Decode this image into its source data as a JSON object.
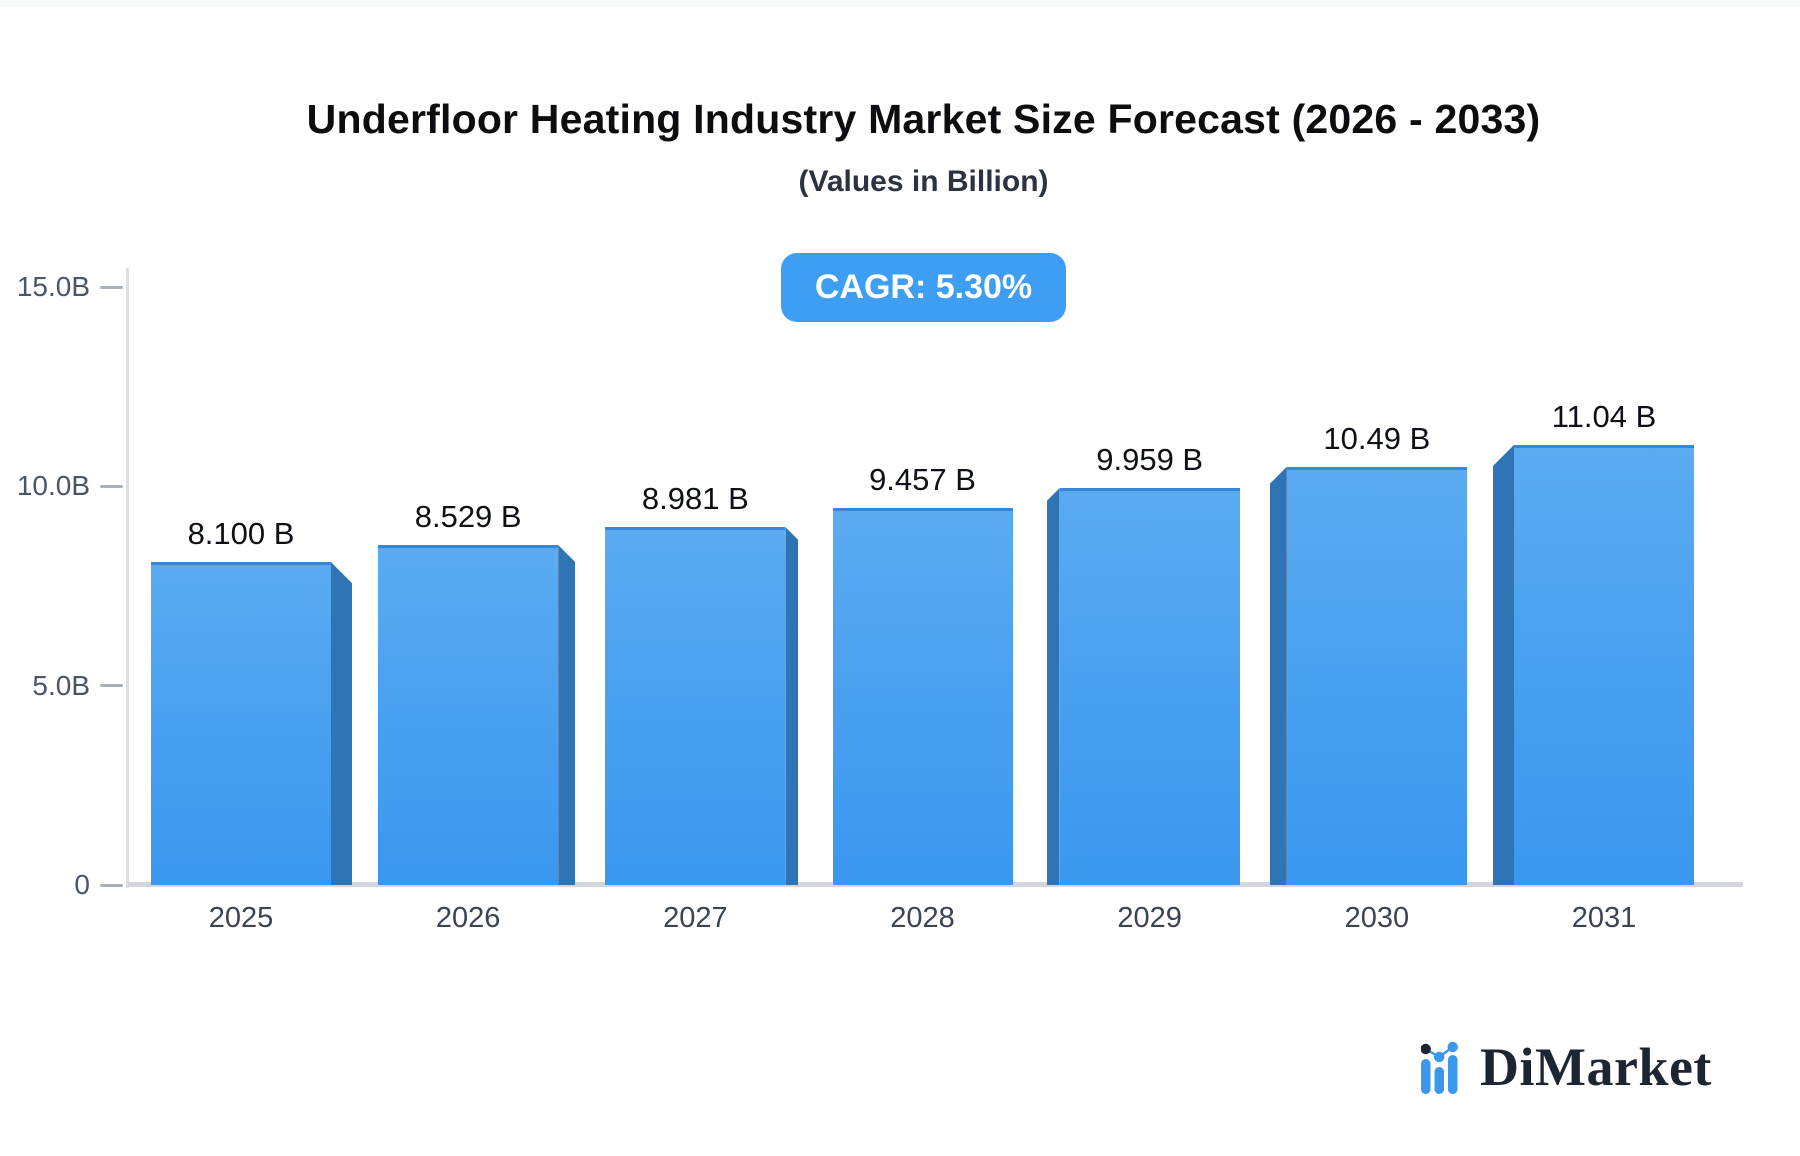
{
  "header": {
    "title": "Underfloor Heating Industry Market Size Forecast (2026 - 2033)",
    "subtitle": "(Values in Billion)",
    "cagr_badge": "CAGR: 5.30%"
  },
  "branding": {
    "logo_text": "DiMarket",
    "logo_icon": "dimarket-bars-icon"
  },
  "colors": {
    "bar_face_top": "#5babf1",
    "bar_face_bottom": "#3b97ef",
    "bar_top_edge": "#3a86d6",
    "bar_side": "#2f74b4",
    "badge_bg": "#3d9ef3",
    "badge_text": "#ffffff",
    "axis_line": "#d6d9df",
    "tick_dash": "#a9b0bb",
    "tick_label": "#4a5568",
    "category_label": "#3a4452",
    "value_label": "#0d1016",
    "title": "#0b0d11",
    "subtitle": "#2b3340",
    "logo_text_color": "#1c2532",
    "logo_icon_blue": "#3b96ee"
  },
  "chart_data": {
    "type": "bar",
    "title": "Underfloor Heating Industry Market Size Forecast (2026 - 2033)",
    "subtitle": "(Values in Billion)",
    "annotation": "CAGR: 5.30%",
    "unit": "Billion",
    "categories": [
      "2025",
      "2026",
      "2027",
      "2028",
      "2029",
      "2030",
      "2031"
    ],
    "values": [
      8.1,
      8.529,
      8.981,
      9.457,
      9.959,
      10.49,
      11.04
    ],
    "value_labels": [
      "8.100 B",
      "8.529 B",
      "8.981 B",
      "9.457 B",
      "9.959 B",
      "10.49 B",
      "11.04 B"
    ],
    "ylim": [
      0,
      15
    ],
    "yticks": [
      {
        "value": 0,
        "label": "0"
      },
      {
        "value": 5,
        "label": "5.0B"
      },
      {
        "value": 10,
        "label": "10.0B"
      },
      {
        "value": 15,
        "label": "15.0B"
      }
    ],
    "grid": false,
    "legend": false,
    "bar_style": "3d-extruded"
  }
}
